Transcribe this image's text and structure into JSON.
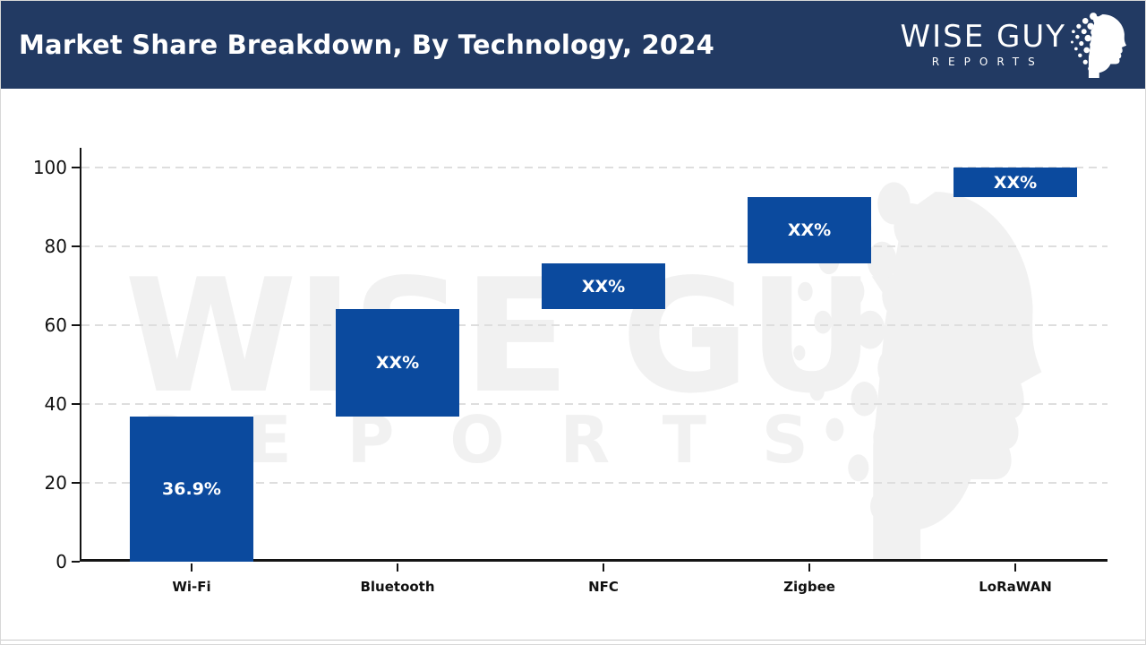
{
  "header": {
    "title": "Market Share Breakdown, By Technology, 2024",
    "logo": {
      "line1": "WISE GUY",
      "line2": "REPORTS"
    }
  },
  "watermark": {
    "line1": "WISE GUY",
    "line2": "REPORTS"
  },
  "colors": {
    "header_bg": "#223a63",
    "bar": "#0b4a9e",
    "bar_label": "#ffffff",
    "grid": "#dedede",
    "axis": "#141414",
    "watermark": "#f1f1f1"
  },
  "chart_data": {
    "type": "bar",
    "subtype": "waterfall",
    "title": "Market Share Breakdown, By Technology, 2024",
    "categories": [
      "Wi-Fi",
      "Bluetooth",
      "NFC",
      "Zigbee",
      "LoRaWAN"
    ],
    "segments": [
      {
        "category": "Wi-Fi",
        "start": 0,
        "end": 36.9,
        "label": "36.9%"
      },
      {
        "category": "Bluetooth",
        "start": 36.9,
        "end": 64.0,
        "label": "XX%"
      },
      {
        "category": "NFC",
        "start": 64.0,
        "end": 75.6,
        "label": "XX%"
      },
      {
        "category": "Zigbee",
        "start": 75.6,
        "end": 92.5,
        "label": "XX%"
      },
      {
        "category": "LoRaWAN",
        "start": 92.5,
        "end": 100,
        "label": "XX%"
      }
    ],
    "xlabel": "",
    "ylabel": "",
    "ylim": [
      0,
      100
    ],
    "yticks": [
      0,
      20,
      40,
      60,
      80,
      100
    ],
    "grid": "horizontal-dashed",
    "legend": "none"
  }
}
